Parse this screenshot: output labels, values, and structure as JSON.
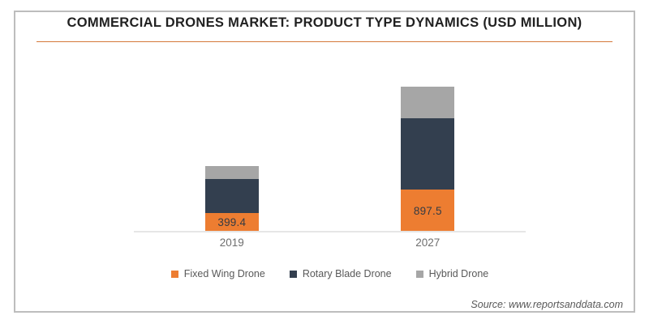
{
  "header": {
    "title": "COMMERCIAL DRONES MARKET: PRODUCT TYPE DYNAMICS (USD MILLION)"
  },
  "source": {
    "label": "Source: www.reportsanddata.com"
  },
  "colors": {
    "fixed_wing": "#ED7D31",
    "rotary_blade": "#333F4F",
    "hybrid": "#A6A6A6",
    "title_text": "#212121",
    "title_rule": "#D4793B",
    "frame_border": "#BDBDBD",
    "axis_line": "#E6E6E6",
    "axis_label_text": "#6E6E6E",
    "legend_text": "#595959",
    "data_label_text": "#343B44"
  },
  "chart_data": {
    "type": "bar",
    "stacked": true,
    "title": "COMMERCIAL DRONES MARKET: PRODUCT TYPE DYNAMICS (USD MILLION)",
    "unit": "USD Million",
    "categories": [
      "2019",
      "2027"
    ],
    "series": [
      {
        "name": "Fixed Wing Drone",
        "color": "#ED7D31",
        "values": [
          399.4,
          897.5
        ],
        "labels": [
          "399.4",
          "897.5"
        ]
      },
      {
        "name": "Rotary Blade Drone",
        "color": "#333F4F",
        "values": [
          730,
          1520
        ],
        "labels": [
          null,
          null
        ]
      },
      {
        "name": "Hybrid Drone",
        "color": "#A6A6A6",
        "values": [
          275,
          675
        ],
        "labels": [
          null,
          null
        ]
      }
    ],
    "value_axis_visible": false,
    "gridlines": false,
    "legend_position": "bottom"
  }
}
